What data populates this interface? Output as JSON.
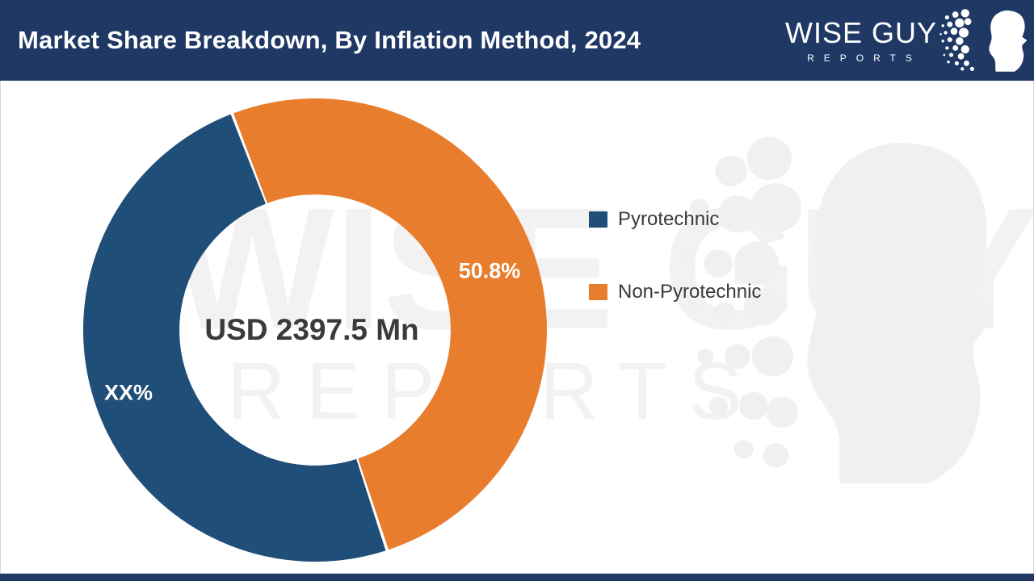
{
  "header": {
    "title": "Market Share Breakdown, By Inflation Method, 2024",
    "logo": {
      "line1": "WISE GUY",
      "line2": "REPORTS"
    }
  },
  "chart_data": {
    "type": "pie",
    "subtype": "donut",
    "title": "Market Share Breakdown, By Inflation Method, 2024",
    "center_label": "USD 2397.5 Mn",
    "start_angle_deg": -21,
    "hole_ratio": 0.585,
    "legend_position": "right",
    "clockwise_order": [
      "Non-Pyrotechnic",
      "Pyrotechnic"
    ],
    "segments": [
      {
        "name": "Pyrotechnic",
        "value_pct": 49.2,
        "slice_label": "XX%",
        "color": "#1f4e79"
      },
      {
        "name": "Non-Pyrotechnic",
        "value_pct": 50.8,
        "slice_label": "50.8%",
        "color": "#e87d2e"
      }
    ]
  },
  "legend": {
    "items": [
      {
        "label": "Pyrotechnic",
        "color": "#1f4e79"
      },
      {
        "label": "Non-Pyrotechnic",
        "color": "#e87d2e"
      }
    ]
  },
  "watermark": {
    "line1": "WISE GUY",
    "line2": "REPORTS"
  },
  "colors": {
    "header_bg": "#1f3864",
    "footer_bg": "#1f3864",
    "slice_blue": "#1f4e79",
    "slice_orange": "#e87d2e",
    "center_text": "#3b3b3b",
    "legend_text": "#3a3a3a",
    "watermark": "#f2f2f2",
    "border": "#d6d6d6"
  }
}
